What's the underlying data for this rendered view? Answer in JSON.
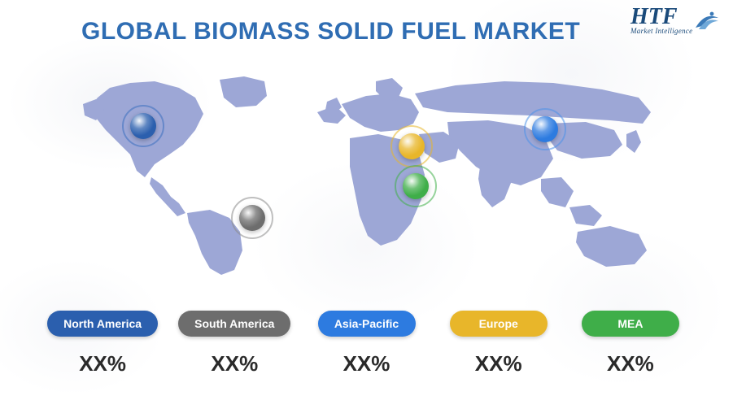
{
  "title": "GLOBAL BIOMASS SOLID FUEL MARKET",
  "title_color": "#2f6db3",
  "title_fontsize": 30,
  "logo": {
    "text": "HTF",
    "subtext": "Market Intelligence",
    "color": "#1a4a7a",
    "swoosh_colors": [
      "#3b7ab8",
      "#6fa8d8"
    ]
  },
  "background_color": "#ffffff",
  "map_fill": "#9da7d6",
  "markers": [
    {
      "name": "north-america",
      "x": 12,
      "y": 26,
      "color": "#2b5fae",
      "ring_color": "#3a6fc0"
    },
    {
      "name": "south-america",
      "x": 30.5,
      "y": 71,
      "color": "#6d6d6d",
      "ring_color": "#8a8a8a"
    },
    {
      "name": "europe",
      "x": 57.8,
      "y": 36,
      "color": "#e8b62a",
      "ring_color": "#e8b62a"
    },
    {
      "name": "mea",
      "x": 58.5,
      "y": 55.5,
      "color": "#3fae49",
      "ring_color": "#3fae49"
    },
    {
      "name": "asia-pacific",
      "x": 80.5,
      "y": 27.5,
      "color": "#2d7be0",
      "ring_color": "#4a92ea"
    }
  ],
  "regions": [
    {
      "label": "North America",
      "value": "XX%",
      "pill_color": "#2b5fae"
    },
    {
      "label": "South America",
      "value": "XX%",
      "pill_color": "#6d6d6d"
    },
    {
      "label": "Asia-Pacific",
      "value": "XX%",
      "pill_color": "#2d7be0"
    },
    {
      "label": "Europe",
      "value": "XX%",
      "pill_color": "#e8b62a"
    },
    {
      "label": "MEA",
      "value": "XX%",
      "pill_color": "#3fae49"
    }
  ],
  "value_fontsize": 26,
  "value_color": "#2a2a2a",
  "pill_fontsize": 14,
  "pill_text_color": "#ffffff"
}
